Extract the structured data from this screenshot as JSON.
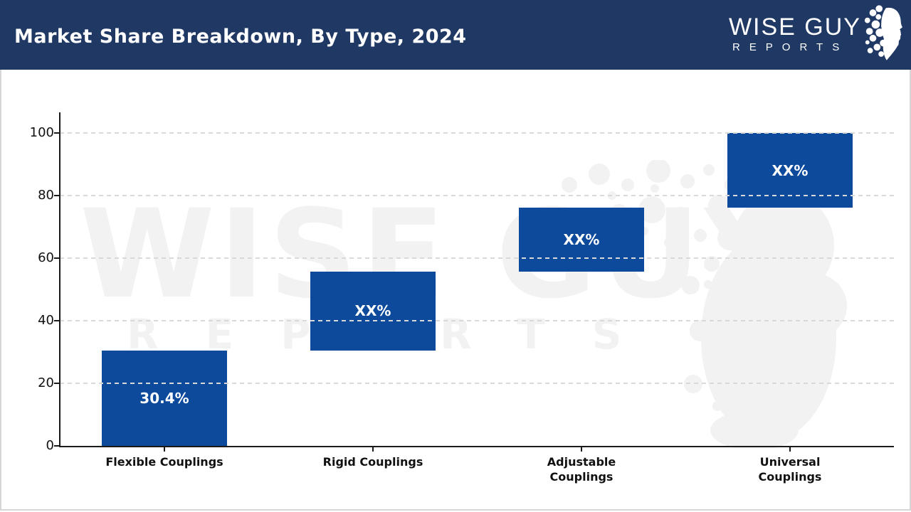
{
  "header": {
    "title": "Market Share Breakdown, By Type, 2024",
    "bg_color": "#1F3864",
    "logo": {
      "name": "WISE GUY",
      "sub": "REPORTS"
    }
  },
  "watermark": {
    "wordmark": "WISE GUY",
    "sub": "REPORTS"
  },
  "chart_data": {
    "type": "bar",
    "variant": "waterfall",
    "title": "Market Share Breakdown, By Type, 2024",
    "categories": [
      "Flexible Couplings",
      "Rigid Couplings",
      "Adjustable Couplings",
      "Universal Couplings"
    ],
    "category_label_lines": [
      [
        "Flexible Couplings"
      ],
      [
        "Rigid Couplings"
      ],
      [
        "Adjustable",
        "Couplings"
      ],
      [
        "Universal",
        "Couplings"
      ]
    ],
    "segments": [
      {
        "category": "Flexible Couplings",
        "start": 0,
        "end": 30.4,
        "label": "30.4%"
      },
      {
        "category": "Rigid Couplings",
        "start": 30.4,
        "end": 55.7,
        "label": "XX%"
      },
      {
        "category": "Adjustable Couplings",
        "start": 55.7,
        "end": 76.1,
        "label": "XX%"
      },
      {
        "category": "Universal Couplings",
        "start": 76.1,
        "end": 100,
        "label": "XX%"
      }
    ],
    "xlabel": "",
    "ylabel": "",
    "ylim": [
      0,
      100
    ],
    "yticks": [
      0,
      20,
      40,
      60,
      80,
      100
    ],
    "grid": {
      "axis": "y",
      "style": "dashed",
      "color": "#D9D9D9"
    },
    "bar_color": "#0D4A9C",
    "bar_label_color": "#FFFFFF"
  }
}
